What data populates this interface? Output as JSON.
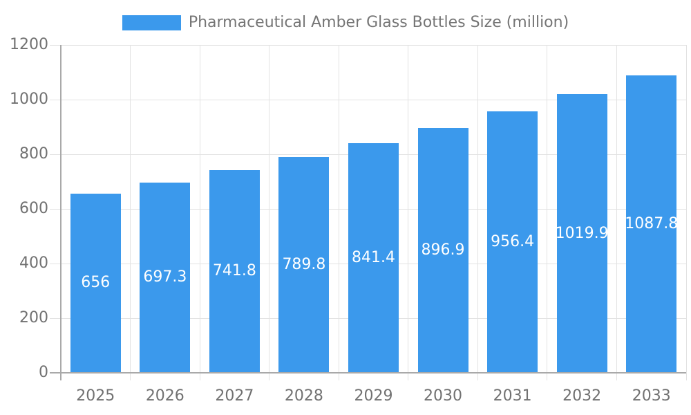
{
  "legend": {
    "label": "Pharmaceutical Amber Glass Bottles Size (million)"
  },
  "chart_data": {
    "type": "bar",
    "title": "Pharmaceutical Amber Glass Bottles Size (million)",
    "series_name": "Pharmaceutical Amber Glass Bottles Size (million)",
    "categories": [
      "2025",
      "2026",
      "2027",
      "2028",
      "2029",
      "2030",
      "2031",
      "2032",
      "2033"
    ],
    "values": [
      656,
      697.3,
      741.8,
      789.8,
      841.4,
      896.9,
      956.4,
      1019.9,
      1087.8
    ],
    "value_labels": [
      "656",
      "697.3",
      "741.8",
      "789.8",
      "841.4",
      "896.9",
      "956.4",
      "1019.9",
      "1087.8"
    ],
    "xlabel": "",
    "ylabel": "",
    "ylim": [
      0,
      1200
    ],
    "y_ticks": [
      0,
      200,
      400,
      600,
      800,
      1000,
      1200
    ],
    "grid": true,
    "legend_position": "top",
    "colors": {
      "bar": "#3B99EC",
      "grid": "#E2E2E2",
      "axis_line": "#A9A9A9",
      "axis_text": "#717171",
      "legend_text": "#757575",
      "value_label": "#FFFFFF",
      "background": "#FFFFFF"
    }
  }
}
